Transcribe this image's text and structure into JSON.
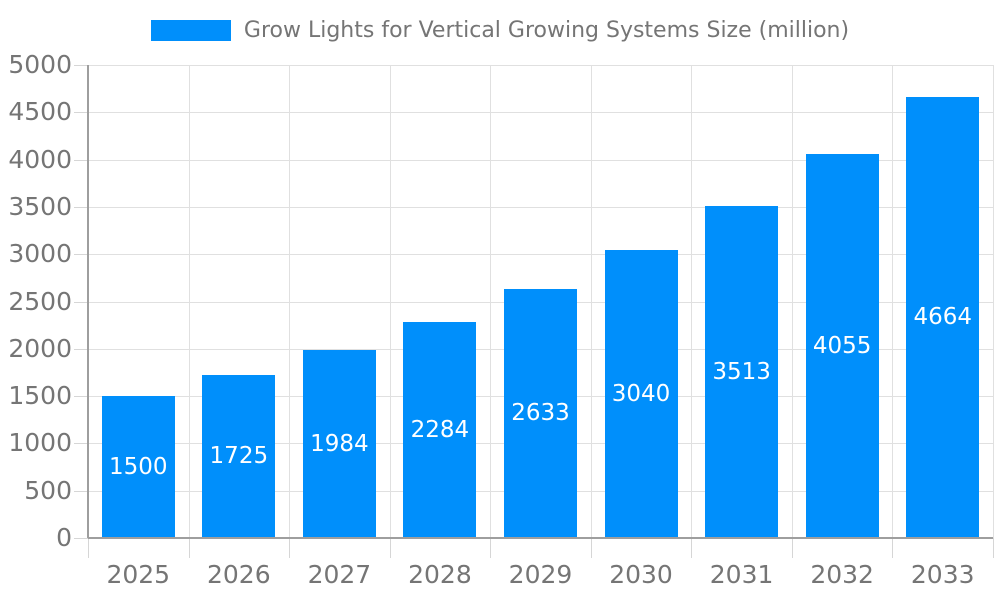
{
  "legend": {
    "label": "Grow Lights for Vertical Growing Systems Size (million)"
  },
  "chart_data": {
    "type": "bar",
    "title": "Grow Lights for Vertical Growing Systems Size (million)",
    "categories": [
      "2025",
      "2026",
      "2027",
      "2028",
      "2029",
      "2030",
      "2031",
      "2032",
      "2033"
    ],
    "values": [
      1500,
      1725,
      1984,
      2284,
      2633,
      3040,
      3513,
      4055,
      4664
    ],
    "xlabel": "",
    "ylabel": "",
    "ylim": [
      0,
      5000
    ],
    "ytick_step": 500,
    "grid": true,
    "legend_position": "top",
    "legend_entries": [
      "Grow Lights for Vertical Growing Systems Size (million)"
    ],
    "colors": {
      "bar": "#008FFB",
      "axis_text": "#757575",
      "legend_text": "#757575",
      "bar_label_text": "#FFFFFF",
      "grid_line": "#E0E0E0",
      "tick_line": "#D6D6D6",
      "axis_line": "#9E9E9E"
    }
  }
}
